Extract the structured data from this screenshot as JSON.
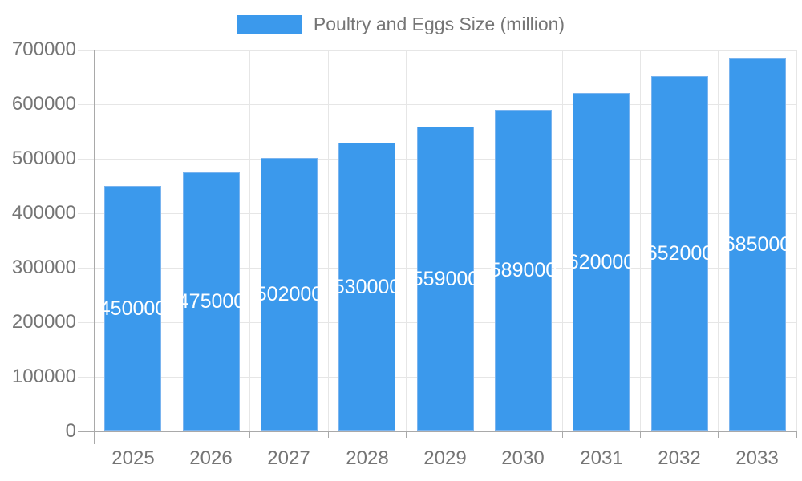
{
  "chart_data": {
    "type": "bar",
    "title": "Poultry and Eggs Size (million)",
    "categories": [
      "2025",
      "2026",
      "2027",
      "2028",
      "2029",
      "2030",
      "2031",
      "2032",
      "2033"
    ],
    "series": [
      {
        "name": "Poultry and Eggs Size (million)",
        "values": [
          450000,
          475000,
          502000,
          530000,
          559000,
          589000,
          620000,
          652000,
          685000
        ]
      }
    ],
    "bar_value_labels": [
      "450000",
      "475000",
      "502000",
      "530000",
      "559000",
      "589000",
      "620000",
      "652000",
      "685000"
    ],
    "xlabel": "",
    "ylabel": "",
    "ylim": [
      0,
      700000
    ],
    "ytick_interval": 100000,
    "ytick_labels": [
      "0",
      "100000",
      "200000",
      "300000",
      "400000",
      "500000",
      "600000",
      "700000"
    ],
    "grid": "on",
    "legend_position": "top-center"
  },
  "colors": {
    "bar": "#3b99ec",
    "bar_edge": "#7ab4ef",
    "axis_text": "#757575",
    "gridline": "#e6e6e6",
    "axis_line": "#a9a9a9",
    "bar_label_text": "#ffffff",
    "background": "#ffffff"
  }
}
